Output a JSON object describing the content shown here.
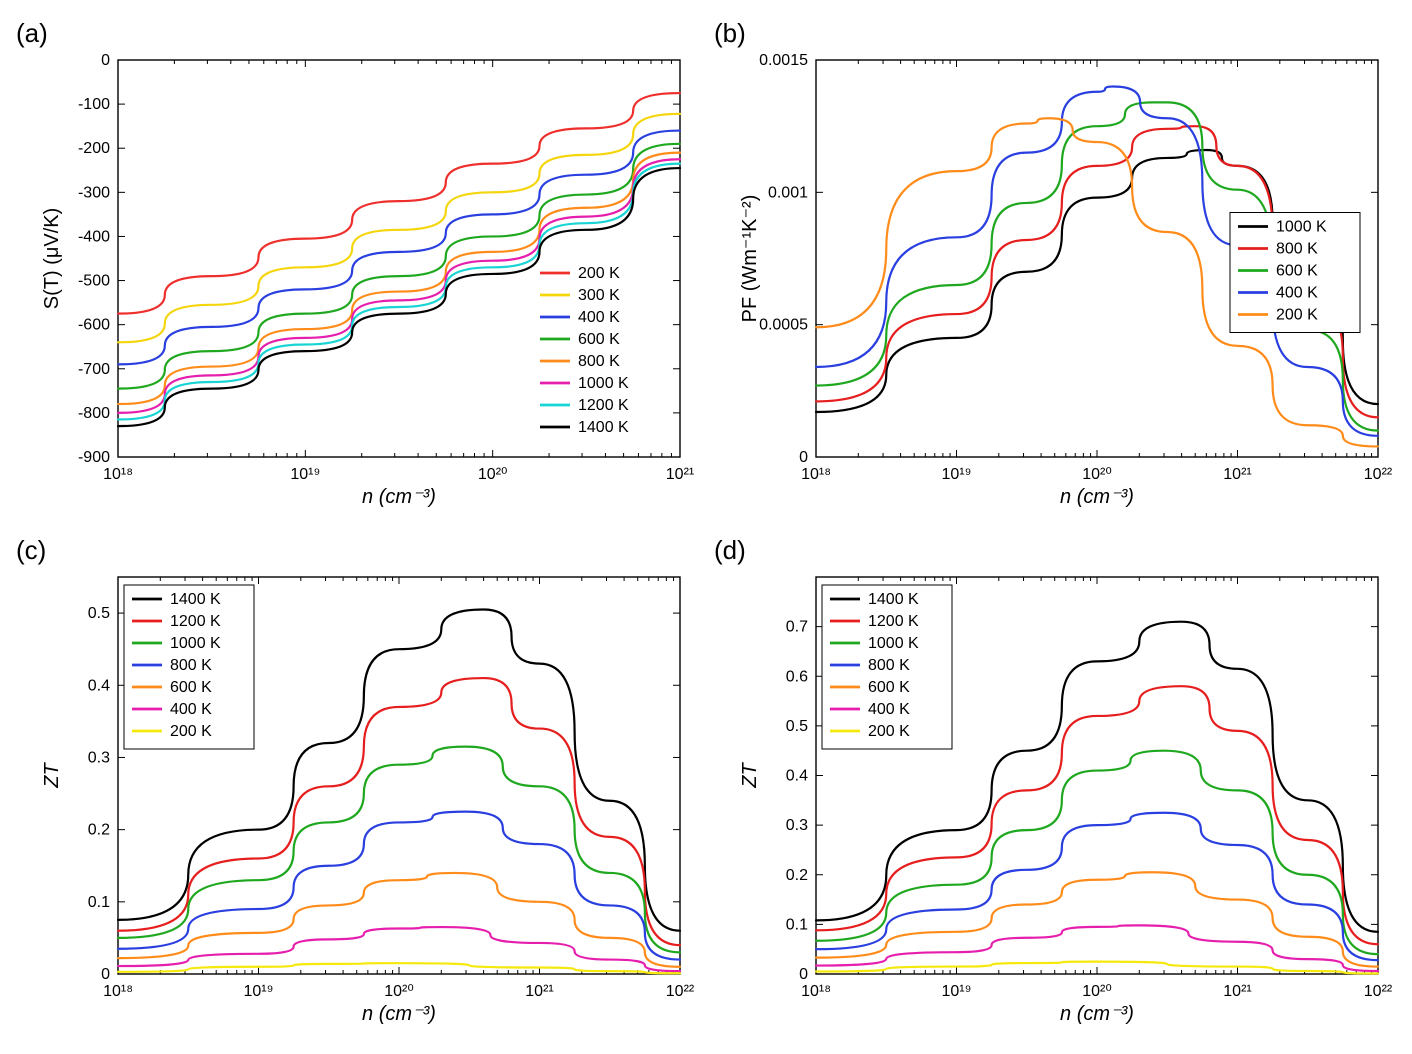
{
  "figure": {
    "background_color": "#ffffff",
    "axis_color": "#000000",
    "tick_color": "#000000",
    "label_font": "Arial, Helvetica, sans-serif",
    "panel_letter_fontsize": 26,
    "axis_label_fontsize": 20,
    "tick_label_fontsize": 16,
    "legend_fontsize": 16,
    "line_width": 2.2
  },
  "panels": {
    "a": {
      "letter": "(a)",
      "type": "line",
      "xlabel": "n (cm⁻³)",
      "ylabel": "S(T) (μV/K)",
      "xscale": "log",
      "yscale": "linear",
      "xlim": [
        1e+18,
        1e+21
      ],
      "ylim": [
        -900,
        0
      ],
      "xticks": [
        1e+18,
        1e+19,
        1e+20,
        1e+21
      ],
      "xtick_labels": [
        "10¹⁸",
        "10¹⁹",
        "10²⁰",
        "10²¹"
      ],
      "yticks": [
        -900,
        -800,
        -700,
        -600,
        -500,
        -400,
        -300,
        -200,
        -100,
        0
      ],
      "ytick_labels": [
        "-900",
        "-800",
        "-700",
        "-600",
        "-500",
        "-400",
        "-300",
        "-200",
        "-100",
        "0"
      ],
      "legend_pos": "right-lower",
      "legend_box": false,
      "series": [
        {
          "label": "200 K",
          "color": "#ee2f2c",
          "x": [
            1e+18,
            3.16e+18,
            1e+19,
            3.16e+19,
            1e+20,
            3.16e+20,
            1e+21
          ],
          "y": [
            -575,
            -490,
            -405,
            -320,
            -235,
            -155,
            -75
          ]
        },
        {
          "label": "300 K",
          "color": "#f5d50c",
          "x": [
            1e+18,
            3.16e+18,
            1e+19,
            3.16e+19,
            1e+20,
            3.16e+20,
            1e+21
          ],
          "y": [
            -640,
            -555,
            -470,
            -385,
            -300,
            -215,
            -122
          ]
        },
        {
          "label": "400 K",
          "color": "#2a3fe0",
          "x": [
            1e+18,
            3.16e+18,
            1e+19,
            3.16e+19,
            1e+20,
            3.16e+20,
            1e+21
          ],
          "y": [
            -690,
            -605,
            -520,
            -435,
            -350,
            -260,
            -160
          ]
        },
        {
          "label": "600 K",
          "color": "#1fa81f",
          "x": [
            1e+18,
            3.16e+18,
            1e+19,
            3.16e+19,
            1e+20,
            3.16e+20,
            1e+21
          ],
          "y": [
            -745,
            -660,
            -575,
            -490,
            -400,
            -305,
            -190
          ]
        },
        {
          "label": "800 K",
          "color": "#ff8c1a",
          "x": [
            1e+18,
            3.16e+18,
            1e+19,
            3.16e+19,
            1e+20,
            3.16e+20,
            1e+21
          ],
          "y": [
            -780,
            -695,
            -610,
            -525,
            -435,
            -335,
            -210
          ]
        },
        {
          "label": "1000 K",
          "color": "#e61eae",
          "x": [
            1e+18,
            3.16e+18,
            1e+19,
            3.16e+19,
            1e+20,
            3.16e+20,
            1e+21
          ],
          "y": [
            -800,
            -715,
            -630,
            -545,
            -455,
            -355,
            -225
          ]
        },
        {
          "label": "1200 K",
          "color": "#18d4d4",
          "x": [
            1e+18,
            3.16e+18,
            1e+19,
            3.16e+19,
            1e+20,
            3.16e+20,
            1e+21
          ],
          "y": [
            -815,
            -730,
            -645,
            -560,
            -470,
            -370,
            -235
          ]
        },
        {
          "label": "1400 K",
          "color": "#000000",
          "x": [
            1e+18,
            3.16e+18,
            1e+19,
            3.16e+19,
            1e+20,
            3.16e+20,
            1e+21
          ],
          "y": [
            -830,
            -745,
            -660,
            -575,
            -485,
            -385,
            -245
          ]
        }
      ]
    },
    "b": {
      "letter": "(b)",
      "type": "line",
      "xlabel": "n (cm⁻³)",
      "ylabel": "PF (Wm⁻¹K⁻²)",
      "xscale": "log",
      "yscale": "linear",
      "xlim": [
        1e+18,
        1e+22
      ],
      "ylim": [
        0,
        0.0015
      ],
      "xticks": [
        1e+18,
        1e+19,
        1e+20,
        1e+21,
        1e+22
      ],
      "xtick_labels": [
        "10¹⁸",
        "10¹⁹",
        "10²⁰",
        "10²¹",
        "10²²"
      ],
      "yticks": [
        0,
        0.0005,
        0.001,
        0.0015
      ],
      "ytick_labels": [
        "0",
        "0.0005",
        "0.001",
        "0.0015"
      ],
      "legend_pos": "right-middle",
      "legend_box": true,
      "series": [
        {
          "label": "1000 K",
          "color": "#000000",
          "x": [
            1e+18,
            1e+19,
            3.16e+19,
            1e+20,
            3.16e+20,
            6e+20,
            1e+21,
            3.16e+21,
            1e+22
          ],
          "y": [
            0.00017,
            0.00045,
            0.0007,
            0.00098,
            0.00113,
            0.00116,
            0.0011,
            0.00068,
            0.0002
          ]
        },
        {
          "label": "800 K",
          "color": "#e61e1e",
          "x": [
            1e+18,
            1e+19,
            3.16e+19,
            1e+20,
            3.16e+20,
            5e+20,
            1e+21,
            3.16e+21,
            1e+22
          ],
          "y": [
            0.00021,
            0.00054,
            0.00082,
            0.0011,
            0.00124,
            0.00125,
            0.0011,
            0.0006,
            0.00015
          ]
        },
        {
          "label": "600 K",
          "color": "#1fa81f",
          "x": [
            1e+18,
            1e+19,
            3.16e+19,
            1e+20,
            2.5e+20,
            3.16e+20,
            1e+21,
            3.16e+21,
            1e+22
          ],
          "y": [
            0.00027,
            0.00065,
            0.00096,
            0.00125,
            0.00134,
            0.00134,
            0.00101,
            0.00048,
            0.0001
          ]
        },
        {
          "label": "400 K",
          "color": "#2a3fe0",
          "x": [
            1e+18,
            1e+19,
            3.16e+19,
            1e+20,
            1.3e+20,
            3.16e+20,
            1e+21,
            3.16e+21,
            1e+22
          ],
          "y": [
            0.00034,
            0.00083,
            0.00115,
            0.00138,
            0.0014,
            0.00128,
            0.0008,
            0.00034,
            8e-05
          ]
        },
        {
          "label": "200 K",
          "color": "#ff8c1a",
          "x": [
            1e+18,
            1e+19,
            3.16e+19,
            4.5e+19,
            1e+20,
            3.16e+20,
            1e+21,
            3.16e+21,
            1e+22
          ],
          "y": [
            0.00049,
            0.00108,
            0.00126,
            0.00128,
            0.00119,
            0.00085,
            0.00042,
            0.00012,
            4e-05
          ]
        }
      ]
    },
    "c": {
      "letter": "(c)",
      "type": "line",
      "xlabel": "n (cm⁻³)",
      "ylabel": "ZT",
      "ylabel_italic": true,
      "xscale": "log",
      "yscale": "linear",
      "xlim": [
        1e+18,
        1e+22
      ],
      "ylim": [
        0,
        0.55
      ],
      "xticks": [
        1e+18,
        1e+19,
        1e+20,
        1e+21,
        1e+22
      ],
      "xtick_labels": [
        "10¹⁸",
        "10¹⁹",
        "10²⁰",
        "10²¹",
        "10²²"
      ],
      "yticks": [
        0,
        0.1,
        0.2,
        0.3,
        0.4,
        0.5
      ],
      "ytick_labels": [
        "0",
        "0.1",
        "0.2",
        "0.3",
        "0.4",
        "0.5"
      ],
      "legend_pos": "left-upper",
      "legend_box": true,
      "series": [
        {
          "label": "1400 K",
          "color": "#000000",
          "x": [
            1e+18,
            1e+19,
            3.16e+19,
            1e+20,
            4e+20,
            1e+21,
            3.16e+21,
            1e+22
          ],
          "y": [
            0.075,
            0.2,
            0.32,
            0.45,
            0.505,
            0.43,
            0.24,
            0.06
          ]
        },
        {
          "label": "1200 K",
          "color": "#e61e1e",
          "x": [
            1e+18,
            1e+19,
            3.16e+19,
            1e+20,
            4e+20,
            1e+21,
            3.16e+21,
            1e+22
          ],
          "y": [
            0.06,
            0.16,
            0.26,
            0.37,
            0.41,
            0.34,
            0.19,
            0.04
          ]
        },
        {
          "label": "1000 K",
          "color": "#1fa81f",
          "x": [
            1e+18,
            1e+19,
            3.16e+19,
            1e+20,
            3e+20,
            1e+21,
            3.16e+21,
            1e+22
          ],
          "y": [
            0.05,
            0.13,
            0.21,
            0.29,
            0.315,
            0.26,
            0.14,
            0.03
          ]
        },
        {
          "label": "800 K",
          "color": "#2a3fe0",
          "x": [
            1e+18,
            1e+19,
            3.16e+19,
            1e+20,
            3e+20,
            1e+21,
            3.16e+21,
            1e+22
          ],
          "y": [
            0.035,
            0.09,
            0.15,
            0.21,
            0.225,
            0.18,
            0.095,
            0.02
          ]
        },
        {
          "label": "600 K",
          "color": "#ff8c1a",
          "x": [
            1e+18,
            1e+19,
            3.16e+19,
            1e+20,
            2.5e+20,
            1e+21,
            3.16e+21,
            1e+22
          ],
          "y": [
            0.022,
            0.057,
            0.095,
            0.13,
            0.14,
            0.1,
            0.05,
            0.01
          ]
        },
        {
          "label": "400 K",
          "color": "#e61eae",
          "x": [
            1e+18,
            1e+19,
            3.16e+19,
            1e+20,
            2e+20,
            1e+21,
            3.16e+21,
            1e+22
          ],
          "y": [
            0.011,
            0.028,
            0.048,
            0.063,
            0.065,
            0.043,
            0.02,
            0.004
          ]
        },
        {
          "label": "200 K",
          "color": "#f5e80c",
          "x": [
            1e+18,
            1e+19,
            3.16e+19,
            1e+20,
            1e+21,
            3.16e+21,
            1e+22
          ],
          "y": [
            0.003,
            0.01,
            0.014,
            0.015,
            0.009,
            0.004,
            0.001
          ]
        }
      ]
    },
    "d": {
      "letter": "(d)",
      "type": "line",
      "xlabel": "n (cm⁻³)",
      "ylabel": "ZT",
      "ylabel_italic": true,
      "xscale": "log",
      "yscale": "linear",
      "xlim": [
        1e+18,
        1e+22
      ],
      "ylim": [
        0,
        0.8
      ],
      "xticks": [
        1e+18,
        1e+19,
        1e+20,
        1e+21,
        1e+22
      ],
      "xtick_labels": [
        "10¹⁸",
        "10¹⁹",
        "10²⁰",
        "10²¹",
        "10²²"
      ],
      "yticks": [
        0,
        0.1,
        0.2,
        0.3,
        0.4,
        0.5,
        0.6,
        0.7
      ],
      "ytick_labels": [
        "0",
        "0.1",
        "0.2",
        "0.3",
        "0.4",
        "0.5",
        "0.6",
        "0.7"
      ],
      "legend_pos": "left-upper",
      "legend_box": true,
      "series": [
        {
          "label": "1400 K",
          "color": "#000000",
          "x": [
            1e+18,
            1e+19,
            3.16e+19,
            1e+20,
            4e+20,
            1e+21,
            3.16e+21,
            1e+22
          ],
          "y": [
            0.108,
            0.29,
            0.45,
            0.63,
            0.71,
            0.615,
            0.35,
            0.085
          ]
        },
        {
          "label": "1200 K",
          "color": "#e61e1e",
          "x": [
            1e+18,
            1e+19,
            3.16e+19,
            1e+20,
            4e+20,
            1e+21,
            3.16e+21,
            1e+22
          ],
          "y": [
            0.088,
            0.235,
            0.37,
            0.52,
            0.58,
            0.49,
            0.27,
            0.06
          ]
        },
        {
          "label": "1000 K",
          "color": "#1fa81f",
          "x": [
            1e+18,
            1e+19,
            3.16e+19,
            1e+20,
            3e+20,
            1e+21,
            3.16e+21,
            1e+22
          ],
          "y": [
            0.067,
            0.18,
            0.29,
            0.41,
            0.45,
            0.37,
            0.2,
            0.04
          ]
        },
        {
          "label": "800 K",
          "color": "#2a3fe0",
          "x": [
            1e+18,
            1e+19,
            3.16e+19,
            1e+20,
            3e+20,
            1e+21,
            3.16e+21,
            1e+22
          ],
          "y": [
            0.05,
            0.13,
            0.21,
            0.3,
            0.325,
            0.26,
            0.14,
            0.028
          ]
        },
        {
          "label": "600 K",
          "color": "#ff8c1a",
          "x": [
            1e+18,
            1e+19,
            3.16e+19,
            1e+20,
            2.5e+20,
            1e+21,
            3.16e+21,
            1e+22
          ],
          "y": [
            0.033,
            0.085,
            0.14,
            0.19,
            0.205,
            0.15,
            0.075,
            0.015
          ]
        },
        {
          "label": "400 K",
          "color": "#e61eae",
          "x": [
            1e+18,
            1e+19,
            3.16e+19,
            1e+20,
            2e+20,
            1e+21,
            3.16e+21,
            1e+22
          ],
          "y": [
            0.017,
            0.044,
            0.073,
            0.095,
            0.098,
            0.065,
            0.03,
            0.006
          ]
        },
        {
          "label": "200 K",
          "color": "#f5e80c",
          "x": [
            1e+18,
            1e+19,
            3.16e+19,
            1e+20,
            1e+21,
            3.16e+21,
            1e+22
          ],
          "y": [
            0.005,
            0.015,
            0.022,
            0.025,
            0.015,
            0.006,
            0.001
          ]
        }
      ]
    }
  }
}
